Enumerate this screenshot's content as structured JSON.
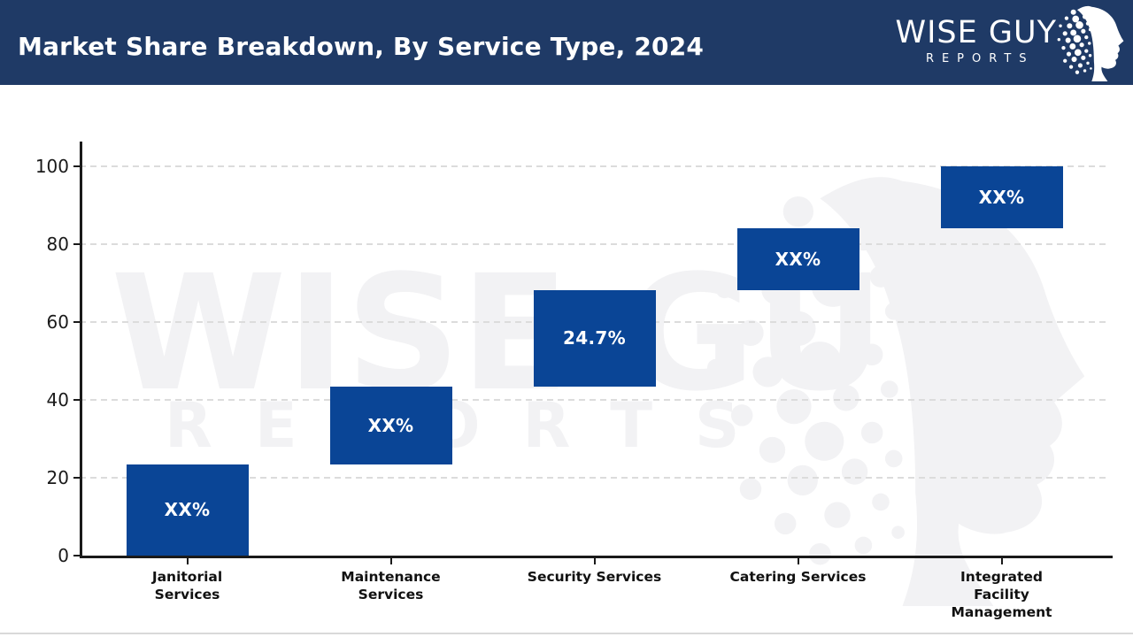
{
  "header": {
    "title": "Market Share Breakdown, By Service Type, 2024",
    "logo": {
      "wordmark": "WISE GUY",
      "subtitle": "REPORTS"
    }
  },
  "watermark": {
    "wordmark": "WISE GUY",
    "subtitle": "REPORTS"
  },
  "colors": {
    "header_bg": "#1F3A66",
    "bar_fill": "#0A4596",
    "bar_label_text": "#FFFFFF",
    "gridline": "#DCDCDC",
    "axis": "#1A1A1A",
    "category_label_text": "#111111",
    "watermark": "#F2F2F4"
  },
  "chart_data": {
    "type": "bar",
    "subtype": "floating-waterfall",
    "title": "Market Share Breakdown, By Service Type, 2024",
    "unit": "percent",
    "ylim": [
      0,
      100
    ],
    "yticks": [
      0,
      20,
      40,
      60,
      80,
      100
    ],
    "grid": "horizontal-dashed",
    "legend": "none",
    "segments": [
      {
        "category": "Janitorial Services",
        "category_lines": [
          "Janitorial",
          "Services"
        ],
        "start": 0,
        "end": 23.5,
        "value": 23.5,
        "label": "XX%"
      },
      {
        "category": "Maintenance Services",
        "category_lines": [
          "Maintenance",
          "Services"
        ],
        "start": 23.5,
        "end": 43.5,
        "value": 20.0,
        "label": "XX%"
      },
      {
        "category": "Security Services",
        "category_lines": [
          "Security Services"
        ],
        "start": 43.5,
        "end": 68.2,
        "value": 24.7,
        "label": "24.7%"
      },
      {
        "category": "Catering Services",
        "category_lines": [
          "Catering Services"
        ],
        "start": 68.2,
        "end": 84.0,
        "value": 15.8,
        "label": "XX%"
      },
      {
        "category": "Integrated Facility Management",
        "category_lines": [
          "Integrated",
          "Facility",
          "Management"
        ],
        "start": 84.0,
        "end": 100.0,
        "value": 16.0,
        "label": "XX%"
      }
    ]
  }
}
